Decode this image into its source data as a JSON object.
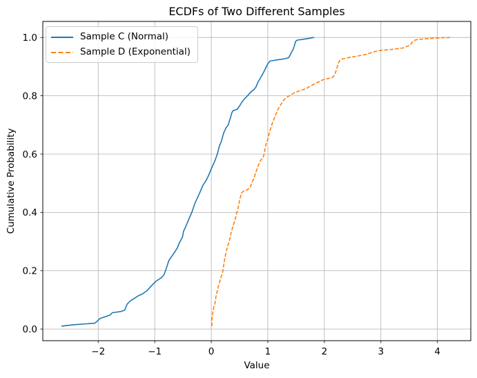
{
  "figure": {
    "title": "ECDFs of Two Different Samples",
    "xlabel": "Value",
    "ylabel": "Cumulative Probability"
  },
  "legend": {
    "position": "upper left",
    "items": [
      {
        "label": "Sample C (Normal)",
        "color": "#1f77b4",
        "style": "solid"
      },
      {
        "label": "Sample D (Exponential)",
        "color": "#ff7f0e",
        "style": "dashed"
      }
    ]
  },
  "colors": {
    "series_blue": "#1f77b4",
    "series_orange": "#ff7f0e",
    "grid": "#b0b0b0",
    "spine": "#000000",
    "background": "#ffffff"
  },
  "chart_data": {
    "type": "line",
    "title": "ECDFs of Two Different Samples",
    "xlabel": "Value",
    "ylabel": "Cumulative Probability",
    "grid": true,
    "legend_position": "upper left",
    "xlim": [
      -2.98,
      4.59
    ],
    "ylim": [
      -0.04,
      1.055
    ],
    "xticks": [
      -2,
      -1,
      0,
      1,
      2,
      3,
      4
    ],
    "xtick_labels": [
      "−2",
      "−1",
      "0",
      "1",
      "2",
      "3",
      "4"
    ],
    "yticks": [
      0.0,
      0.2,
      0.4,
      0.6,
      0.8,
      1.0
    ],
    "ytick_labels": [
      "0.0",
      "0.2",
      "0.4",
      "0.6",
      "0.8",
      "1.0"
    ],
    "series": [
      {
        "name": "Sample C (Normal)",
        "color": "#1f77b4",
        "line_style": "solid",
        "line_width": 1.6,
        "points": [
          [
            -2.65,
            0.01
          ],
          [
            -2.42,
            0.015
          ],
          [
            -2.06,
            0.02
          ],
          [
            -2.0,
            0.03
          ],
          [
            -1.97,
            0.036
          ],
          [
            -1.85,
            0.044
          ],
          [
            -1.79,
            0.048
          ],
          [
            -1.75,
            0.056
          ],
          [
            -1.6,
            0.06
          ],
          [
            -1.53,
            0.065
          ],
          [
            -1.49,
            0.085
          ],
          [
            -1.44,
            0.095
          ],
          [
            -1.38,
            0.103
          ],
          [
            -1.28,
            0.115
          ],
          [
            -1.22,
            0.12
          ],
          [
            -1.14,
            0.131
          ],
          [
            -1.05,
            0.15
          ],
          [
            -0.97,
            0.165
          ],
          [
            -0.89,
            0.175
          ],
          [
            -0.84,
            0.185
          ],
          [
            -0.8,
            0.205
          ],
          [
            -0.75,
            0.235
          ],
          [
            -0.66,
            0.26
          ],
          [
            -0.6,
            0.278
          ],
          [
            -0.56,
            0.297
          ],
          [
            -0.51,
            0.315
          ],
          [
            -0.49,
            0.335
          ],
          [
            -0.46,
            0.348
          ],
          [
            -0.42,
            0.366
          ],
          [
            -0.38,
            0.384
          ],
          [
            -0.34,
            0.402
          ],
          [
            -0.3,
            0.425
          ],
          [
            -0.28,
            0.435
          ],
          [
            -0.21,
            0.465
          ],
          [
            -0.15,
            0.492
          ],
          [
            -0.09,
            0.51
          ],
          [
            -0.04,
            0.53
          ],
          [
            -0.01,
            0.545
          ],
          [
            0.03,
            0.562
          ],
          [
            0.07,
            0.58
          ],
          [
            0.11,
            0.602
          ],
          [
            0.14,
            0.625
          ],
          [
            0.18,
            0.645
          ],
          [
            0.22,
            0.673
          ],
          [
            0.26,
            0.69
          ],
          [
            0.3,
            0.7
          ],
          [
            0.34,
            0.725
          ],
          [
            0.36,
            0.74
          ],
          [
            0.38,
            0.748
          ],
          [
            0.46,
            0.754
          ],
          [
            0.5,
            0.765
          ],
          [
            0.54,
            0.778
          ],
          [
            0.58,
            0.788
          ],
          [
            0.63,
            0.798
          ],
          [
            0.71,
            0.815
          ],
          [
            0.76,
            0.822
          ],
          [
            0.79,
            0.83
          ],
          [
            0.83,
            0.848
          ],
          [
            0.89,
            0.868
          ],
          [
            0.93,
            0.882
          ],
          [
            0.95,
            0.89
          ],
          [
            1.0,
            0.91
          ],
          [
            1.04,
            0.919
          ],
          [
            1.1,
            0.921
          ],
          [
            1.16,
            0.923
          ],
          [
            1.24,
            0.925
          ],
          [
            1.32,
            0.928
          ],
          [
            1.37,
            0.931
          ],
          [
            1.4,
            0.942
          ],
          [
            1.42,
            0.95
          ],
          [
            1.45,
            0.96
          ],
          [
            1.47,
            0.972
          ],
          [
            1.49,
            0.986
          ],
          [
            1.52,
            0.991
          ],
          [
            1.6,
            0.993
          ],
          [
            1.7,
            0.996
          ],
          [
            1.82,
            1.0
          ]
        ]
      },
      {
        "name": "Sample D (Exponential)",
        "color": "#ff7f0e",
        "line_style": "dashed",
        "line_width": 1.6,
        "points": [
          [
            0.01,
            0.01
          ],
          [
            0.01,
            0.028
          ],
          [
            0.02,
            0.044
          ],
          [
            0.03,
            0.06
          ],
          [
            0.04,
            0.072
          ],
          [
            0.05,
            0.08
          ],
          [
            0.07,
            0.092
          ],
          [
            0.08,
            0.107
          ],
          [
            0.09,
            0.119
          ],
          [
            0.11,
            0.133
          ],
          [
            0.12,
            0.143
          ],
          [
            0.14,
            0.154
          ],
          [
            0.15,
            0.163
          ],
          [
            0.16,
            0.17
          ],
          [
            0.18,
            0.182
          ],
          [
            0.2,
            0.195
          ],
          [
            0.21,
            0.205
          ],
          [
            0.22,
            0.22
          ],
          [
            0.24,
            0.243
          ],
          [
            0.26,
            0.263
          ],
          [
            0.29,
            0.285
          ],
          [
            0.32,
            0.303
          ],
          [
            0.35,
            0.33
          ],
          [
            0.38,
            0.35
          ],
          [
            0.42,
            0.375
          ],
          [
            0.45,
            0.398
          ],
          [
            0.48,
            0.42
          ],
          [
            0.5,
            0.442
          ],
          [
            0.52,
            0.456
          ],
          [
            0.54,
            0.468
          ],
          [
            0.58,
            0.474
          ],
          [
            0.63,
            0.477
          ],
          [
            0.66,
            0.481
          ],
          [
            0.69,
            0.487
          ],
          [
            0.71,
            0.497
          ],
          [
            0.73,
            0.507
          ],
          [
            0.75,
            0.515
          ],
          [
            0.77,
            0.527
          ],
          [
            0.79,
            0.538
          ],
          [
            0.81,
            0.549
          ],
          [
            0.83,
            0.56
          ],
          [
            0.85,
            0.568
          ],
          [
            0.87,
            0.577
          ],
          [
            0.9,
            0.585
          ],
          [
            0.93,
            0.595
          ],
          [
            0.95,
            0.618
          ],
          [
            0.97,
            0.635
          ],
          [
            1.0,
            0.651
          ],
          [
            1.02,
            0.667
          ],
          [
            1.04,
            0.682
          ],
          [
            1.06,
            0.694
          ],
          [
            1.08,
            0.706
          ],
          [
            1.12,
            0.726
          ],
          [
            1.16,
            0.745
          ],
          [
            1.2,
            0.761
          ],
          [
            1.24,
            0.773
          ],
          [
            1.28,
            0.785
          ],
          [
            1.32,
            0.793
          ],
          [
            1.39,
            0.801
          ],
          [
            1.45,
            0.808
          ],
          [
            1.53,
            0.815
          ],
          [
            1.61,
            0.82
          ],
          [
            1.69,
            0.826
          ],
          [
            1.77,
            0.835
          ],
          [
            1.86,
            0.844
          ],
          [
            1.94,
            0.852
          ],
          [
            2.01,
            0.857
          ],
          [
            2.09,
            0.86
          ],
          [
            2.15,
            0.864
          ],
          [
            2.17,
            0.869
          ],
          [
            2.19,
            0.876
          ],
          [
            2.21,
            0.888
          ],
          [
            2.23,
            0.9
          ],
          [
            2.25,
            0.912
          ],
          [
            2.27,
            0.921
          ],
          [
            2.31,
            0.926
          ],
          [
            2.37,
            0.928
          ],
          [
            2.43,
            0.931
          ],
          [
            2.49,
            0.933
          ],
          [
            2.58,
            0.936
          ],
          [
            2.66,
            0.939
          ],
          [
            2.74,
            0.942
          ],
          [
            2.8,
            0.946
          ],
          [
            2.86,
            0.95
          ],
          [
            2.92,
            0.953
          ],
          [
            2.98,
            0.955
          ],
          [
            3.07,
            0.957
          ],
          [
            3.15,
            0.958
          ],
          [
            3.23,
            0.96
          ],
          [
            3.31,
            0.962
          ],
          [
            3.39,
            0.964
          ],
          [
            3.47,
            0.97
          ],
          [
            3.52,
            0.975
          ],
          [
            3.57,
            0.988
          ],
          [
            3.62,
            0.992
          ],
          [
            3.71,
            0.994
          ],
          [
            3.83,
            0.996
          ],
          [
            4.0,
            0.998
          ],
          [
            4.1,
            0.999
          ],
          [
            4.22,
            1.0
          ]
        ]
      }
    ]
  }
}
